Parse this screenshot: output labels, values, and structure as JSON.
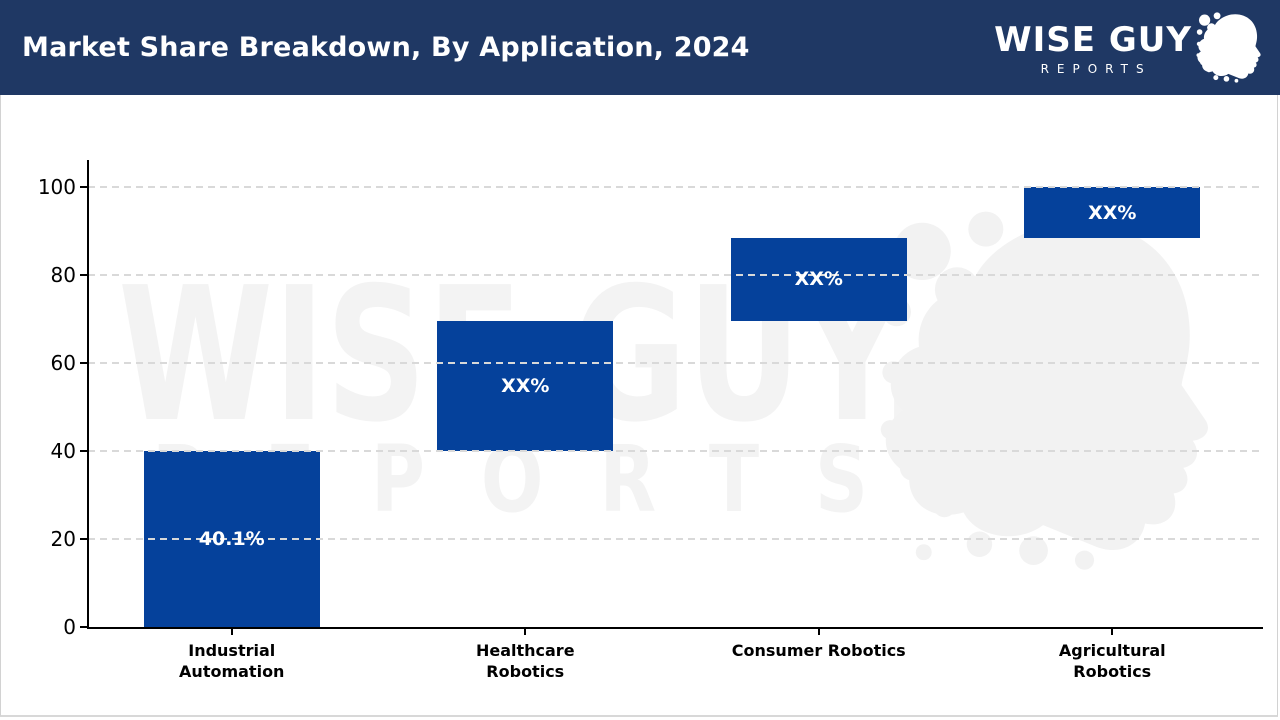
{
  "header": {
    "title": "Market Share Breakdown, By Application, 2024",
    "bg_color": "#1f3864",
    "text_color": "#ffffff",
    "logo": {
      "line1": "WISE GUY",
      "line2": "REPORTS"
    }
  },
  "watermark": {
    "line1": "WISE GUY.",
    "line2": "REPORTS",
    "color": "#f3f3f3"
  },
  "chart_data": {
    "type": "bar",
    "subtype": "waterfall",
    "title": "Market Share Breakdown, By Application, 2024",
    "xlabel": "",
    "ylabel": "",
    "ylim": [
      0,
      106
    ],
    "y_ticks": [
      0,
      20,
      40,
      60,
      80,
      100
    ],
    "grid": "horizontal-dashed-above-bars",
    "legend": "none",
    "bar_color": "#05419b",
    "grid_color": "#d9d9d9",
    "axis_color": "#000000",
    "bar_label_color": "#ffffff",
    "categories": [
      "Industrial Automation",
      "Healthcare Robotics",
      "Consumer Robotics",
      "Agricultural Robotics"
    ],
    "category_lines": [
      [
        "Industrial",
        "Automation"
      ],
      [
        "Healthcare",
        "Robotics"
      ],
      [
        "Consumer Robotics"
      ],
      [
        "Agricultural",
        "Robotics"
      ]
    ],
    "segments": [
      {
        "category": "Industrial Automation",
        "start": 0,
        "end": 40.1,
        "value_label": "40.1%"
      },
      {
        "category": "Healthcare Robotics",
        "start": 40.1,
        "end": 69.6,
        "value_label": "XX%"
      },
      {
        "category": "Consumer Robotics",
        "start": 69.6,
        "end": 88.4,
        "value_label": "XX%"
      },
      {
        "category": "Agricultural Robotics",
        "start": 88.4,
        "end": 100,
        "value_label": "XX%"
      }
    ]
  }
}
